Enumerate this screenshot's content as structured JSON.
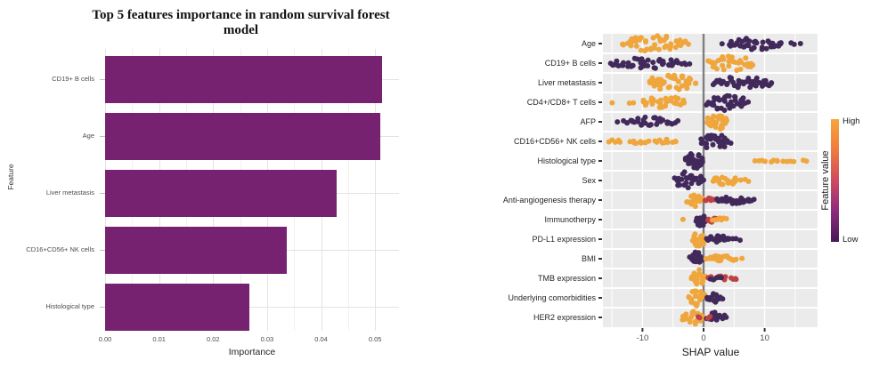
{
  "chart_data": [
    {
      "type": "bar",
      "orientation": "horizontal",
      "title": "Top 5 features importance in random survival forest model",
      "xlabel": "Importance",
      "ylabel": "Feature",
      "categories": [
        "CD19+ B cells",
        "Age",
        "Liver metastasis",
        "CD16+CD56+ NK cells",
        "Histological type"
      ],
      "values": [
        0.0513,
        0.051,
        0.0429,
        0.0336,
        0.0267
      ],
      "x_ticks": [
        "0.00",
        "0.01",
        "0.02",
        "0.03",
        "0.04",
        "0.05"
      ],
      "xlim": [
        0,
        0.054
      ],
      "bar_color": "#762271",
      "grid": "on"
    },
    {
      "type": "scatter",
      "subtype": "shap-beeswarm",
      "xlabel": "SHAP value",
      "x_ticks": [
        -10,
        0,
        10
      ],
      "xlim": [
        -16.6,
        18.7
      ],
      "grid_major": [
        -10,
        0,
        10
      ],
      "grid_minor": [
        -15,
        -5,
        5,
        15
      ],
      "panel_bg": "#EBEBEB",
      "zero_line_color": "#7F7F7F",
      "colors": {
        "high": "#EFA63C",
        "mid": "#BE4145",
        "low": "#42295B"
      },
      "legend": {
        "title": "Feature value",
        "high": "High",
        "low": "Low",
        "gradient": [
          "#F9A63B",
          "#EE7C3F",
          "#CE4A5F",
          "#8E2B7E",
          "#461857"
        ]
      },
      "rows": [
        {
          "feature": "Age",
          "clusters": [
            [
              "high",
              -13.4,
              -2.6,
              46,
              9
            ],
            [
              "low",
              2.9,
              3.2,
              1,
              1
            ],
            [
              "low",
              4,
              13,
              42,
              7
            ],
            [
              "low",
              13.8,
              16.2,
              3,
              1.5
            ]
          ]
        },
        {
          "feature": "CD19+ B cells",
          "clusters": [
            [
              "low",
              -15.5,
              -3,
              44,
              6.5
            ],
            [
              "low",
              -2.4,
              -2.1,
              1,
              1
            ],
            [
              "high",
              0.7,
              8.3,
              36,
              8.5
            ]
          ]
        },
        {
          "feature": "Liver metastasis",
          "clusters": [
            [
              "high",
              -9.2,
              -1.4,
              40,
              9.5
            ],
            [
              "low",
              1.5,
              11.3,
              42,
              7
            ]
          ]
        },
        {
          "feature": "CD4+/CD8+ T cells",
          "clusters": [
            [
              "high",
              -15.1,
              -14.8,
              1,
              1
            ],
            [
              "high",
              -12.3,
              -11.2,
              2,
              1.5
            ],
            [
              "high",
              -10.3,
              -2.9,
              30,
              7
            ],
            [
              "low",
              0.6,
              6.9,
              36,
              9.5
            ],
            [
              "low",
              7.1,
              7.4,
              1,
              1
            ]
          ]
        },
        {
          "feature": "AFP",
          "clusters": [
            [
              "low",
              -14.3,
              -13.9,
              1,
              1
            ],
            [
              "low",
              -13,
              -4.4,
              32,
              5.5
            ],
            [
              "high",
              0.6,
              4.1,
              32,
              10
            ]
          ]
        },
        {
          "feature": "CD16+CD56+ NK cells",
          "clusters": [
            [
              "high",
              -15.6,
              -13.3,
              5,
              1.8
            ],
            [
              "high",
              -12.1,
              -8.8,
              9,
              2.5
            ],
            [
              "high",
              -8.2,
              -4.2,
              10,
              2.5
            ],
            [
              "low",
              -0.6,
              4.4,
              32,
              10
            ]
          ]
        },
        {
          "feature": "Histological type",
          "clusters": [
            [
              "low",
              -2.9,
              -0.1,
              28,
              10.5
            ],
            [
              "high",
              8.3,
              8.6,
              1,
              1
            ],
            [
              "high",
              9,
              13.1,
              8,
              1.4
            ],
            [
              "high",
              13.5,
              15,
              3,
              1.4
            ],
            [
              "high",
              16,
              17,
              2,
              1.4
            ]
          ]
        },
        {
          "feature": "Sex",
          "clusters": [
            [
              "low",
              -4.6,
              -0.1,
              30,
              10.5
            ],
            [
              "high",
              1.2,
              6,
              22,
              5
            ],
            [
              "high",
              6.6,
              7.7,
              2,
              1.5
            ]
          ]
        },
        {
          "feature": "Anti-angiogenesis therapy",
          "clusters": [
            [
              "high",
              -2.6,
              -0.1,
              20,
              8
            ],
            [
              "mid",
              0.2,
              2.2,
              8,
              2.5
            ],
            [
              "low",
              2.3,
              7.3,
              24,
              4
            ],
            [
              "low",
              7.6,
              8.5,
              2,
              1.5
            ]
          ]
        },
        {
          "feature": "Immunotherpy",
          "clusters": [
            [
              "high",
              -3.5,
              -3.3,
              1,
              1
            ],
            [
              "low",
              -1.4,
              0.4,
              16,
              7
            ],
            [
              "mid",
              0.5,
              2.1,
              7,
              3
            ],
            [
              "high",
              1.4,
              3.9,
              7,
              3
            ]
          ]
        },
        {
          "feature": "PD-L1 expression",
          "clusters": [
            [
              "high",
              -1.7,
              0.2,
              18,
              9
            ],
            [
              "low",
              0.4,
              4.3,
              20,
              4
            ],
            [
              "low",
              4.6,
              6.2,
              3,
              1.8
            ]
          ]
        },
        {
          "feature": "BMI",
          "clusters": [
            [
              "low",
              -2.2,
              -0.1,
              18,
              8
            ],
            [
              "high",
              0.4,
              5.4,
              22,
              4
            ],
            [
              "high",
              6.2,
              6.5,
              1,
              1
            ]
          ]
        },
        {
          "feature": "TMB expression",
          "clusters": [
            [
              "high",
              -1.9,
              0.3,
              20,
              10
            ],
            [
              "mid",
              0.5,
              5.6,
              13,
              2.5
            ],
            [
              "low",
              0.9,
              3,
              6,
              2
            ]
          ]
        },
        {
          "feature": "Underlying comorbidities",
          "clusters": [
            [
              "high",
              -2.4,
              0.2,
              18,
              9
            ],
            [
              "low",
              0.4,
              3,
              16,
              5
            ]
          ]
        },
        {
          "feature": "HER2 expression",
          "clusters": [
            [
              "high",
              -3.5,
              0.2,
              20,
              8
            ],
            [
              "mid",
              -1,
              -0.6,
              2,
              1.5
            ],
            [
              "low",
              0.4,
              3.7,
              18,
              6
            ],
            [
              "mid",
              0.6,
              1.2,
              2,
              1.5
            ]
          ]
        }
      ]
    }
  ]
}
